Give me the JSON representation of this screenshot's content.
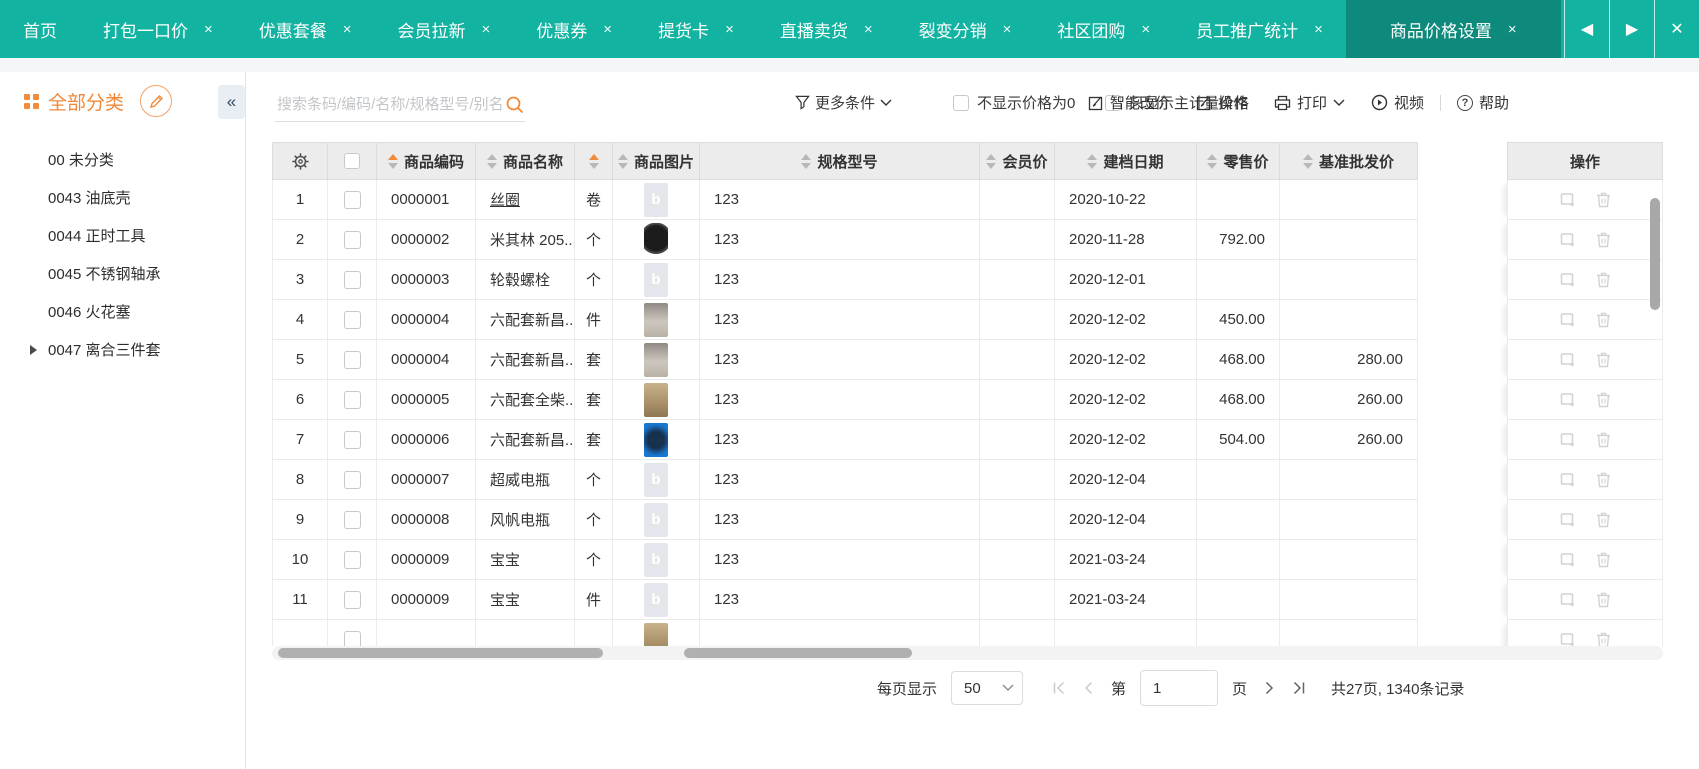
{
  "topbar": {
    "tabs": [
      {
        "label": "首页",
        "closable": false,
        "active": false
      },
      {
        "label": "打包一口价",
        "closable": true,
        "active": false
      },
      {
        "label": "优惠套餐",
        "closable": true,
        "active": false
      },
      {
        "label": "会员拉新",
        "closable": true,
        "active": false
      },
      {
        "label": "优惠券",
        "closable": true,
        "active": false
      },
      {
        "label": "提货卡",
        "closable": true,
        "active": false
      },
      {
        "label": "直播卖货",
        "closable": true,
        "active": false
      },
      {
        "label": "裂变分销",
        "closable": true,
        "active": false
      },
      {
        "label": "社区团购",
        "closable": true,
        "active": false
      },
      {
        "label": "员工推广统计",
        "closable": true,
        "active": false
      },
      {
        "label": "商品价格设置",
        "closable": true,
        "active": true
      }
    ],
    "nav_prev": "◀",
    "nav_next": "▶",
    "nav_close": "✕",
    "colors": {
      "bar": "#12b3a1",
      "active_tab": "#0d8a7b"
    }
  },
  "sidebar": {
    "title": "全部分类",
    "collapse_glyph": "«",
    "items": [
      {
        "label": "00 未分类",
        "expandable": false
      },
      {
        "label": "0043 油底壳",
        "expandable": false
      },
      {
        "label": "0044 正时工具",
        "expandable": false
      },
      {
        "label": "0045 不锈钢轴承",
        "expandable": false
      },
      {
        "label": "0046 火花塞",
        "expandable": false
      },
      {
        "label": "0047 离合三件套",
        "expandable": true
      }
    ],
    "accent_color": "#f0883a"
  },
  "toolbar": {
    "search_placeholder": "搜索条码/编码/名称/规格型号/别名",
    "more_filter_label": "更多条件",
    "hide_zero_label": "不显示价格为0",
    "main_unit_label": "只显示主计量价格",
    "smart_reprice_label": "智能改价",
    "operate_label": "操作",
    "print_label": "打印",
    "video_label": "视频",
    "help_label": "帮助"
  },
  "table": {
    "headers": {
      "code": "商品编码",
      "name": "商品名称",
      "unit": "",
      "image": "商品图片",
      "spec": "规格型号",
      "member": "会员价",
      "date": "建档日期",
      "retail": "零售价",
      "wholesale": "基准批发价",
      "op": "操作"
    },
    "sort_active": {
      "code": "asc",
      "unit": "asc"
    },
    "rows": [
      {
        "index": "1",
        "code": "0000001",
        "name": "丝圈",
        "name_link": true,
        "unit": "卷",
        "image": "logo",
        "spec": "123",
        "member": "",
        "date": "2020-10-22",
        "retail": "",
        "wholesale": ""
      },
      {
        "index": "2",
        "code": "0000002",
        "name": "米其林 205...",
        "unit": "个",
        "image": "tire",
        "spec": "123",
        "member": "",
        "date": "2020-11-28",
        "retail": "792.00",
        "wholesale": ""
      },
      {
        "index": "3",
        "code": "0000003",
        "name": "轮毂螺栓",
        "unit": "个",
        "image": "logo",
        "spec": "123",
        "member": "",
        "date": "2020-12-01",
        "retail": "",
        "wholesale": ""
      },
      {
        "index": "4",
        "code": "0000004",
        "name": "六配套新昌...",
        "unit": "件",
        "image": "photo-gray",
        "spec": "123",
        "member": "",
        "date": "2020-12-02",
        "retail": "450.00",
        "wholesale": ""
      },
      {
        "index": "5",
        "code": "0000004",
        "name": "六配套新昌...",
        "unit": "套",
        "image": "photo-gray",
        "spec": "123",
        "member": "",
        "date": "2020-12-02",
        "retail": "468.00",
        "wholesale": "280.00"
      },
      {
        "index": "6",
        "code": "0000005",
        "name": "六配套全柴...",
        "unit": "套",
        "image": "photo-tan",
        "spec": "123",
        "member": "",
        "date": "2020-12-02",
        "retail": "468.00",
        "wholesale": "260.00"
      },
      {
        "index": "7",
        "code": "0000006",
        "name": "六配套新昌...",
        "unit": "套",
        "image": "photo-blue",
        "spec": "123",
        "member": "",
        "date": "2020-12-02",
        "retail": "504.00",
        "wholesale": "260.00"
      },
      {
        "index": "8",
        "code": "0000007",
        "name": "超威电瓶",
        "unit": "个",
        "image": "logo",
        "spec": "123",
        "member": "",
        "date": "2020-12-04",
        "retail": "",
        "wholesale": ""
      },
      {
        "index": "9",
        "code": "0000008",
        "name": "风帆电瓶",
        "unit": "个",
        "image": "logo",
        "spec": "123",
        "member": "",
        "date": "2020-12-04",
        "retail": "",
        "wholesale": ""
      },
      {
        "index": "10",
        "code": "0000009",
        "name": "宝宝",
        "unit": "个",
        "image": "logo",
        "spec": "123",
        "member": "",
        "date": "2021-03-24",
        "retail": "",
        "wholesale": ""
      },
      {
        "index": "11",
        "code": "0000009",
        "name": "宝宝",
        "unit": "件",
        "image": "logo",
        "spec": "123",
        "member": "",
        "date": "2021-03-24",
        "retail": "",
        "wholesale": ""
      },
      {
        "index": "",
        "code": "",
        "name": "",
        "unit": "",
        "image": "photo-tan",
        "spec": "",
        "member": "",
        "date": "",
        "retail": "",
        "wholesale": "",
        "partial": true
      }
    ],
    "placeholder_logo_glyph": "b"
  },
  "pagination": {
    "per_page_label": "每页显示",
    "per_page_value": "50",
    "page_prefix": "第",
    "page_value": "1",
    "page_suffix": "页",
    "total_label": "共27页, 1340条记录"
  }
}
